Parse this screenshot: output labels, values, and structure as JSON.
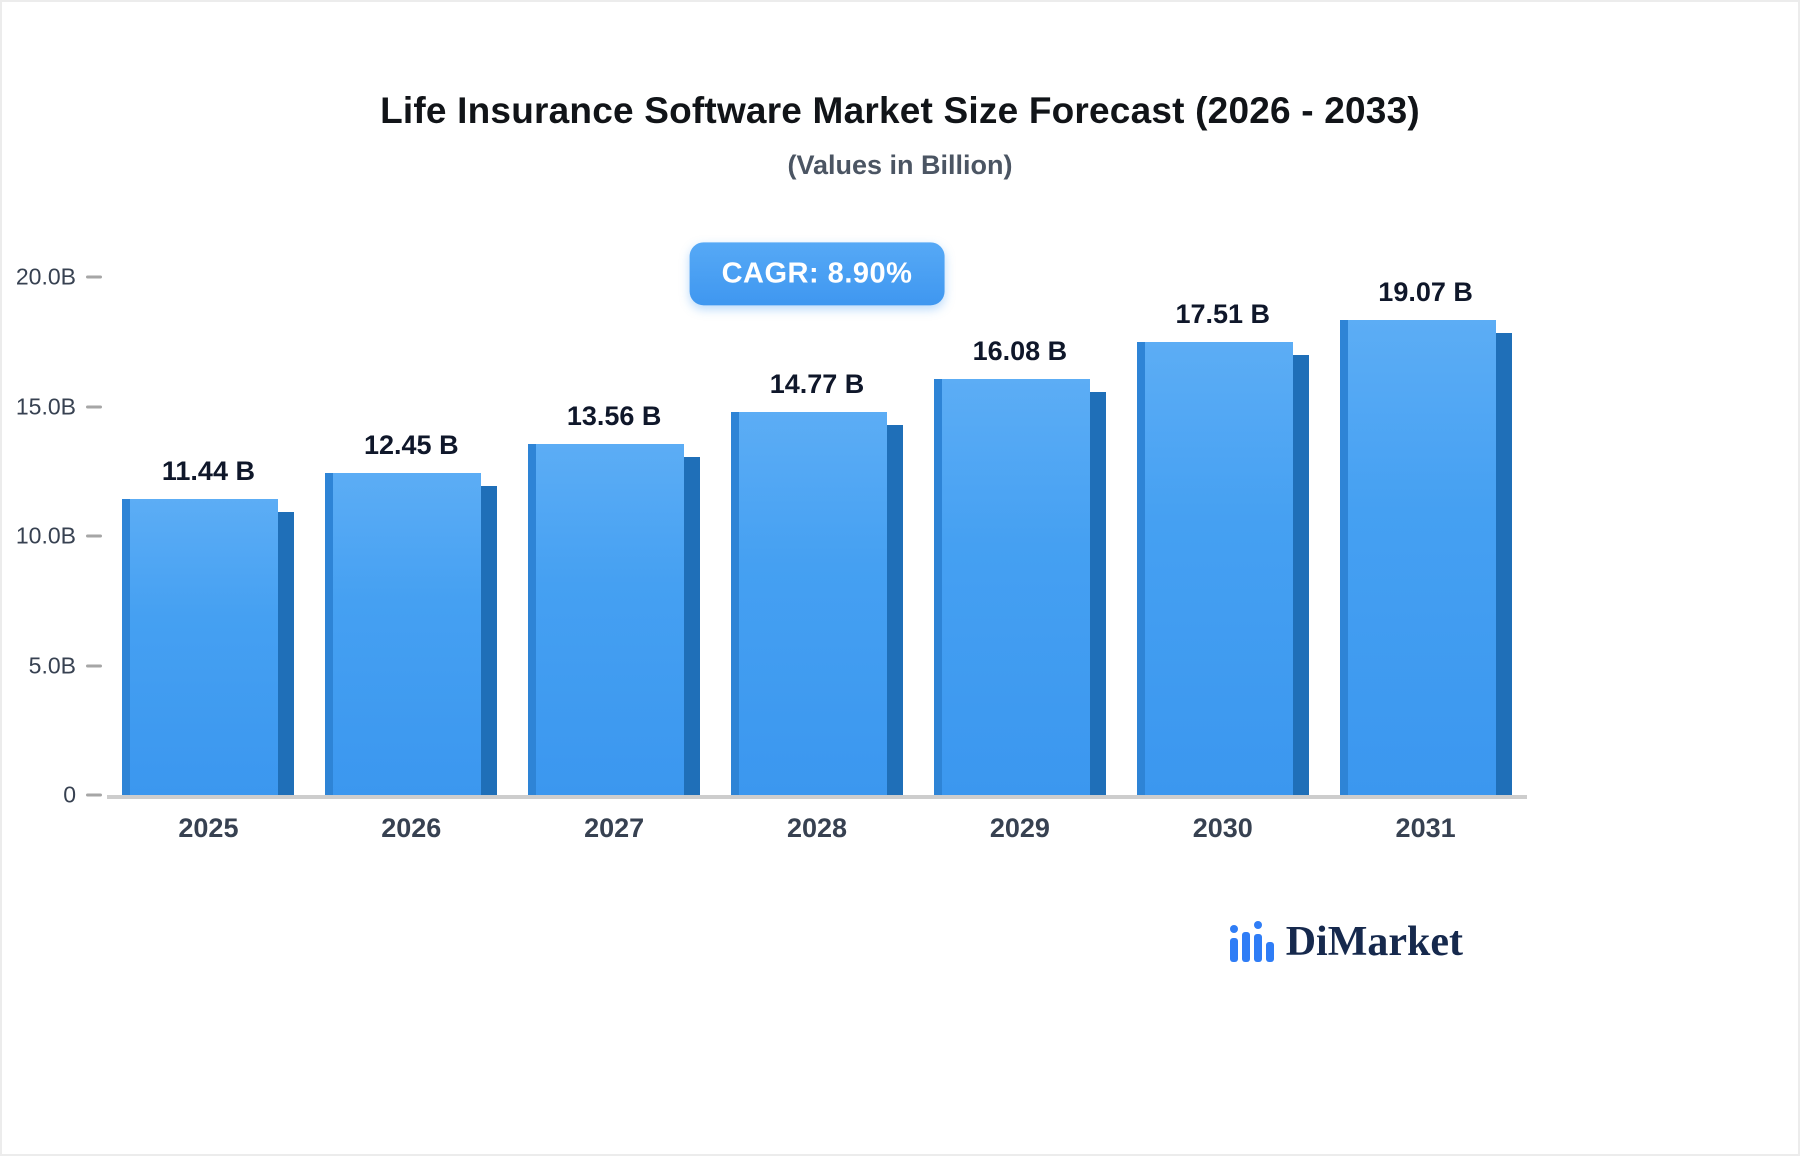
{
  "header": {
    "title": "Life Insurance Software Market Size Forecast (2026 - 2033)",
    "subtitle": "(Values in Billion)"
  },
  "badge": {
    "label": "CAGR: 8.90%",
    "bg_color": "#479ef3",
    "text_color": "#ffffff"
  },
  "logo": {
    "name": "DiMarket",
    "icon": "bar-chart-logo-icon",
    "text_color": "#16294d",
    "icon_color": "#2f7df6"
  },
  "colors": {
    "bar_front": "#3f9af0",
    "bar_side": "#1f6fb8",
    "bar_left_edge": "#2e84d6",
    "axis_line": "#cdcdcd",
    "tick_dash": "#a6a6a6"
  },
  "chart_data": {
    "type": "bar",
    "title": "Life Insurance Software Market Size Forecast (2026 - 2033)",
    "subtitle": "(Values in Billion)",
    "categories": [
      "2025",
      "2026",
      "2027",
      "2028",
      "2029",
      "2030",
      "2031"
    ],
    "values": [
      11.44,
      12.45,
      13.56,
      14.77,
      16.08,
      17.51,
      19.07
    ],
    "value_labels": [
      "11.44 B",
      "12.45 B",
      "13.56 B",
      "14.77 B",
      "16.08 B",
      "17.51 B",
      "19.07 B"
    ],
    "xlabel": "",
    "ylabel": "",
    "ylim": [
      0,
      20
    ],
    "yticks": [
      {
        "value": 0,
        "label": "0"
      },
      {
        "value": 5,
        "label": "5.0B"
      },
      {
        "value": 10,
        "label": "10.0B"
      },
      {
        "value": 15,
        "label": "15.0B"
      },
      {
        "value": 20,
        "label": "20.0B"
      }
    ],
    "grid": false,
    "legend": "none",
    "annotation": "CAGR: 8.90%"
  }
}
